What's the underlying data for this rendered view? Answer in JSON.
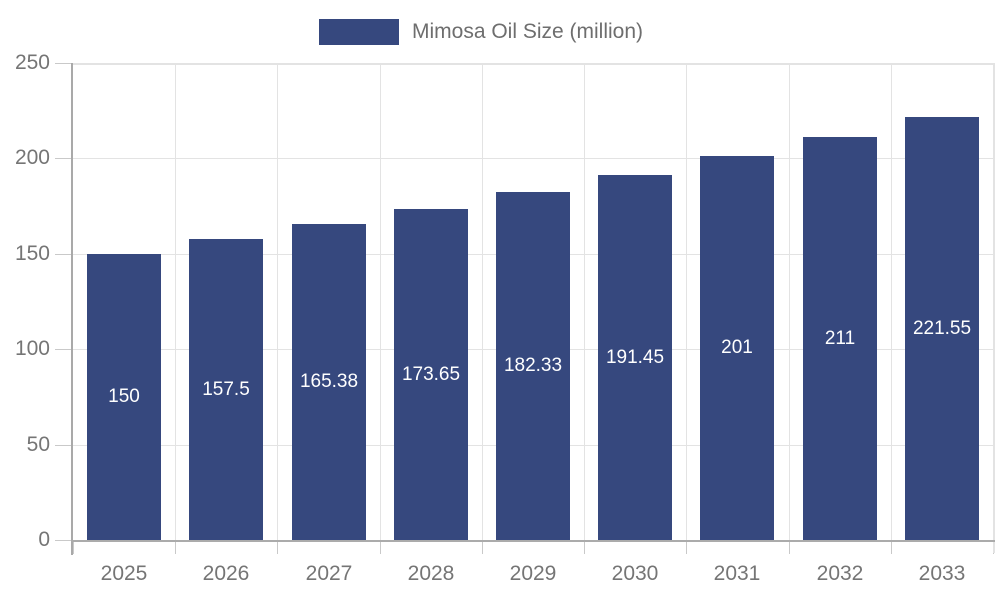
{
  "chart_data": {
    "type": "bar",
    "title": "Mimosa Oil Size (million)",
    "legend": [
      "Mimosa Oil Size (million)"
    ],
    "legend_position": "top-center",
    "categories": [
      "2025",
      "2026",
      "2027",
      "2028",
      "2029",
      "2030",
      "2031",
      "2032",
      "2033"
    ],
    "values": [
      150,
      157.5,
      165.38,
      173.65,
      182.33,
      191.45,
      201,
      211,
      221.55
    ],
    "value_labels": [
      "150",
      "157.5",
      "165.38",
      "173.65",
      "182.33",
      "191.45",
      "201",
      "211",
      "221.55"
    ],
    "xlabel": "",
    "ylabel": "",
    "ylim": [
      0,
      250
    ],
    "yticks": [
      0,
      50,
      100,
      150,
      200,
      250
    ],
    "grid": true,
    "colors": {
      "bar": "#36487E",
      "bar_label": "#FFFFFF",
      "axis_label": "#757575",
      "legend_text": "#6E6E6E",
      "gridline": "#E3E3E3",
      "y_axis_line": "#A9A9A9",
      "x_axis_line": "#ABABAB",
      "plot_right_border": "#E3E3E3",
      "tick": "#C9C9C9",
      "background": "#FFFFFF"
    }
  }
}
